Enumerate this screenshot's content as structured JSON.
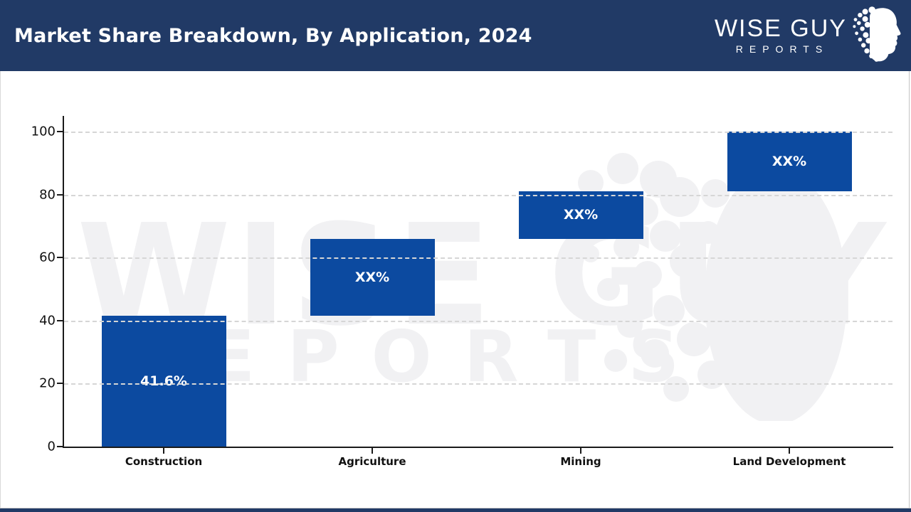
{
  "header": {
    "title": "Market Share Breakdown, By Application, 2024",
    "logo": {
      "line1": "WISE GUY",
      "line2": "REPORTS"
    }
  },
  "watermark": {
    "line1": "WISE GUY",
    "line2": "REPORTS"
  },
  "chart_data": {
    "type": "bar",
    "subtype": "waterfall",
    "title": "Market Share Breakdown, By Application, 2024",
    "categories": [
      "Construction",
      "Agriculture",
      "Mining",
      "Land Development"
    ],
    "segments": [
      {
        "category": "Construction",
        "start": 0,
        "end": 41.6,
        "label": "41.6%"
      },
      {
        "category": "Agriculture",
        "start": 41.6,
        "end": 66,
        "label": "XX%"
      },
      {
        "category": "Mining",
        "start": 66,
        "end": 81,
        "label": "XX%"
      },
      {
        "category": "Land Development",
        "start": 81,
        "end": 100,
        "label": "XX%"
      }
    ],
    "y_ticks": [
      0,
      20,
      40,
      60,
      80,
      100
    ],
    "ylim": [
      0,
      105
    ],
    "xlabel": "",
    "ylabel": "",
    "grid": "horizontal-dashed",
    "legend": "none",
    "bar_color": "#0C4AA0",
    "bar_label_color": "#ffffff"
  },
  "colors": {
    "header_bg": "#213A66",
    "bar": "#0C4AA0",
    "gridline": "#d6d6d6",
    "axis": "#1a1a1a",
    "watermark": "#f1f1f3",
    "footer_bar": "#213A66"
  }
}
